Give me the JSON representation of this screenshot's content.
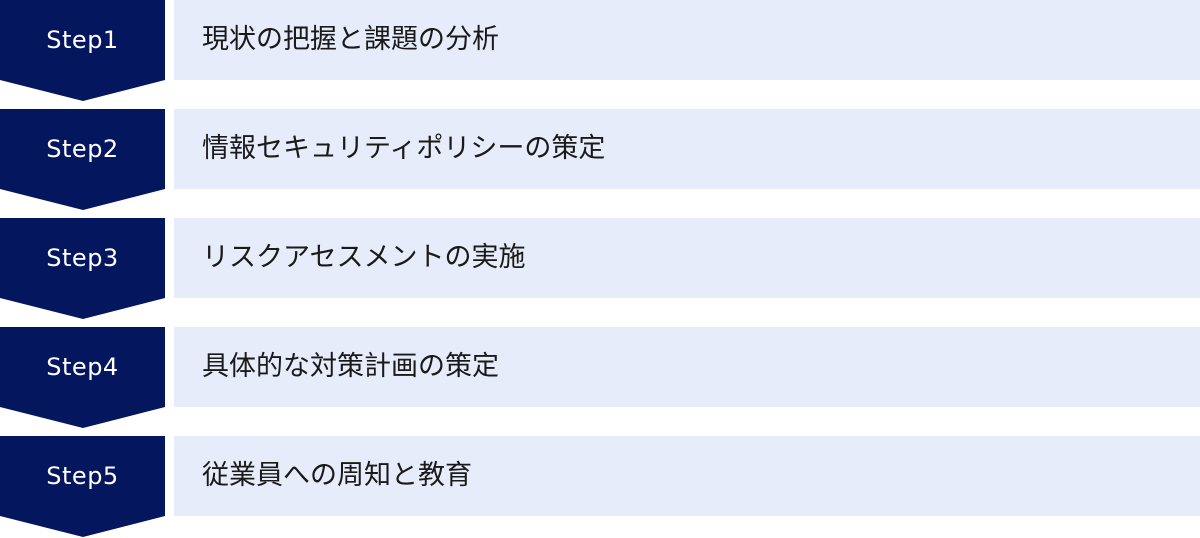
{
  "colors": {
    "badge": "#04165e",
    "box": "#e6ecf9",
    "text": "#1a1a1a"
  },
  "steps": [
    {
      "label": "Step1",
      "text": "現状の把握と課題の分析"
    },
    {
      "label": "Step2",
      "text": "情報セキュリティポリシーの策定"
    },
    {
      "label": "Step3",
      "text": "リスクアセスメントの実施"
    },
    {
      "label": "Step4",
      "text": "具体的な対策計画の策定"
    },
    {
      "label": "Step5",
      "text": "従業員への周知と教育"
    }
  ]
}
